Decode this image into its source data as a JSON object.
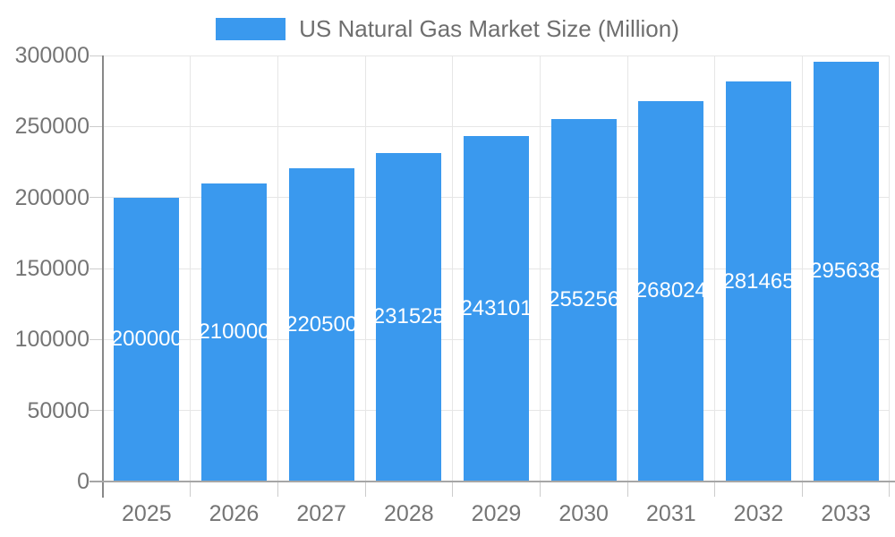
{
  "chart_data": {
    "type": "bar",
    "title": "US Natural Gas Market Size (Million)",
    "legend_entries": [
      "US Natural Gas Market Size (Million)"
    ],
    "legend_position": "top-center",
    "categories": [
      "2025",
      "2026",
      "2027",
      "2028",
      "2029",
      "2030",
      "2031",
      "2032",
      "2033"
    ],
    "series": [
      {
        "name": "US Natural Gas Market Size (Million)",
        "values": [
          200000,
          210000,
          220500,
          231525,
          243101,
          255256,
          268024,
          281465,
          295638
        ]
      }
    ],
    "value_labels": "inside-middle-white",
    "xlabel": "",
    "ylabel": "",
    "ylim": [
      0,
      300000
    ],
    "yticks": [
      0,
      50000,
      100000,
      150000,
      200000,
      250000,
      300000
    ],
    "grid": true
  },
  "colors": {
    "bar": "#3A99EE",
    "bar_label": "#FFFFFF",
    "axis_text": "#757575",
    "title_text": "#6E6E6E",
    "grid": "#E6E6E6",
    "tick": "#CCCCCC",
    "y_axis_line": "#888888",
    "x_axis_line": "#A6A6A6",
    "background": "#FFFFFF"
  }
}
